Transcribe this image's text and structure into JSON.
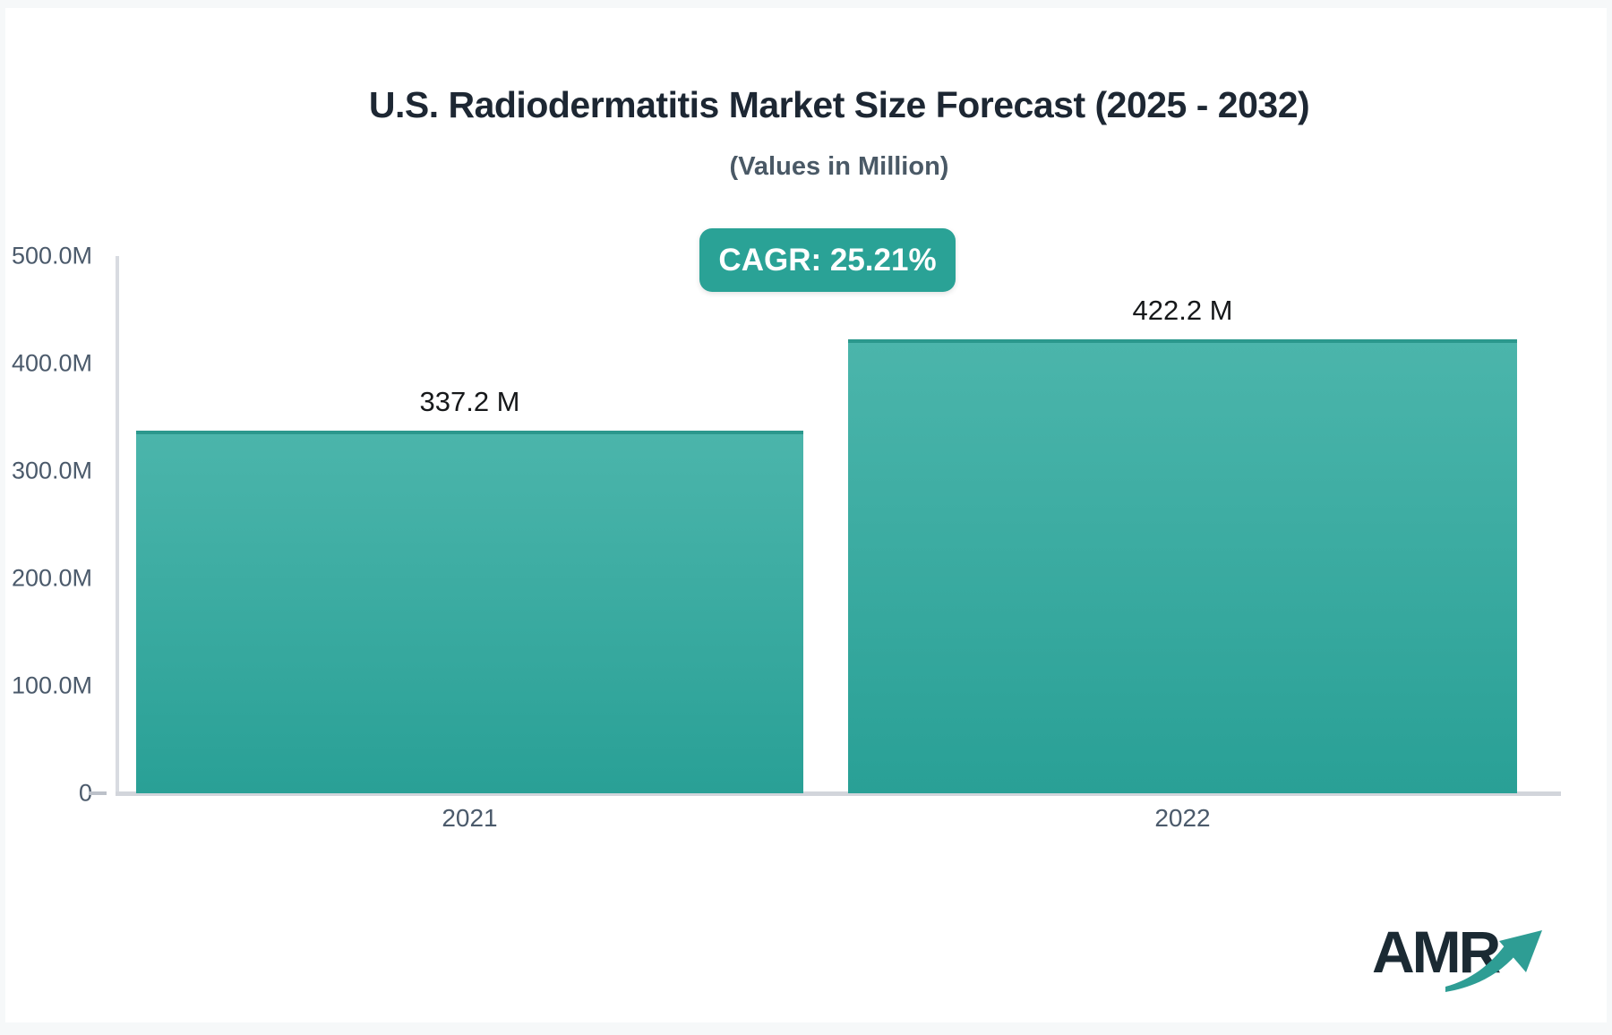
{
  "page": {
    "background_color": "#f6f8f9",
    "card_color": "#ffffff"
  },
  "chart_data": {
    "type": "bar",
    "title": "U.S. Radiodermatitis Market Size Forecast (2025 - 2032)",
    "subtitle": "(Values in Million)",
    "badge_label": "CAGR: 25.21%",
    "categories": [
      "2021",
      "2022"
    ],
    "values": [
      337.2,
      422.2
    ],
    "value_labels": [
      "337.2 M",
      "422.2 M"
    ],
    "y_tick_labels": [
      "500.0M",
      "400.0M",
      "300.0M",
      "200.0M",
      "100.0M",
      "0"
    ],
    "y_tick_values": [
      500,
      400,
      300,
      200,
      100,
      0
    ],
    "ylim": [
      0,
      500
    ],
    "xlabel": "",
    "ylabel": "",
    "grid": false,
    "legend_position": "none",
    "colors": {
      "bar_gradient_top": "#4bb5ab",
      "bar_gradient_bottom": "#29a096",
      "bar_cap": "#2b988d",
      "badge_background": "#2aa296",
      "badge_text": "#ffffff",
      "axis_line": "#d5d8de",
      "tick_text": "#4b5a6b",
      "title_text": "#1d2733"
    }
  },
  "logo": {
    "text": "AMR",
    "text_color": "#1b2a33",
    "arrow_color": "#2e9d94"
  }
}
